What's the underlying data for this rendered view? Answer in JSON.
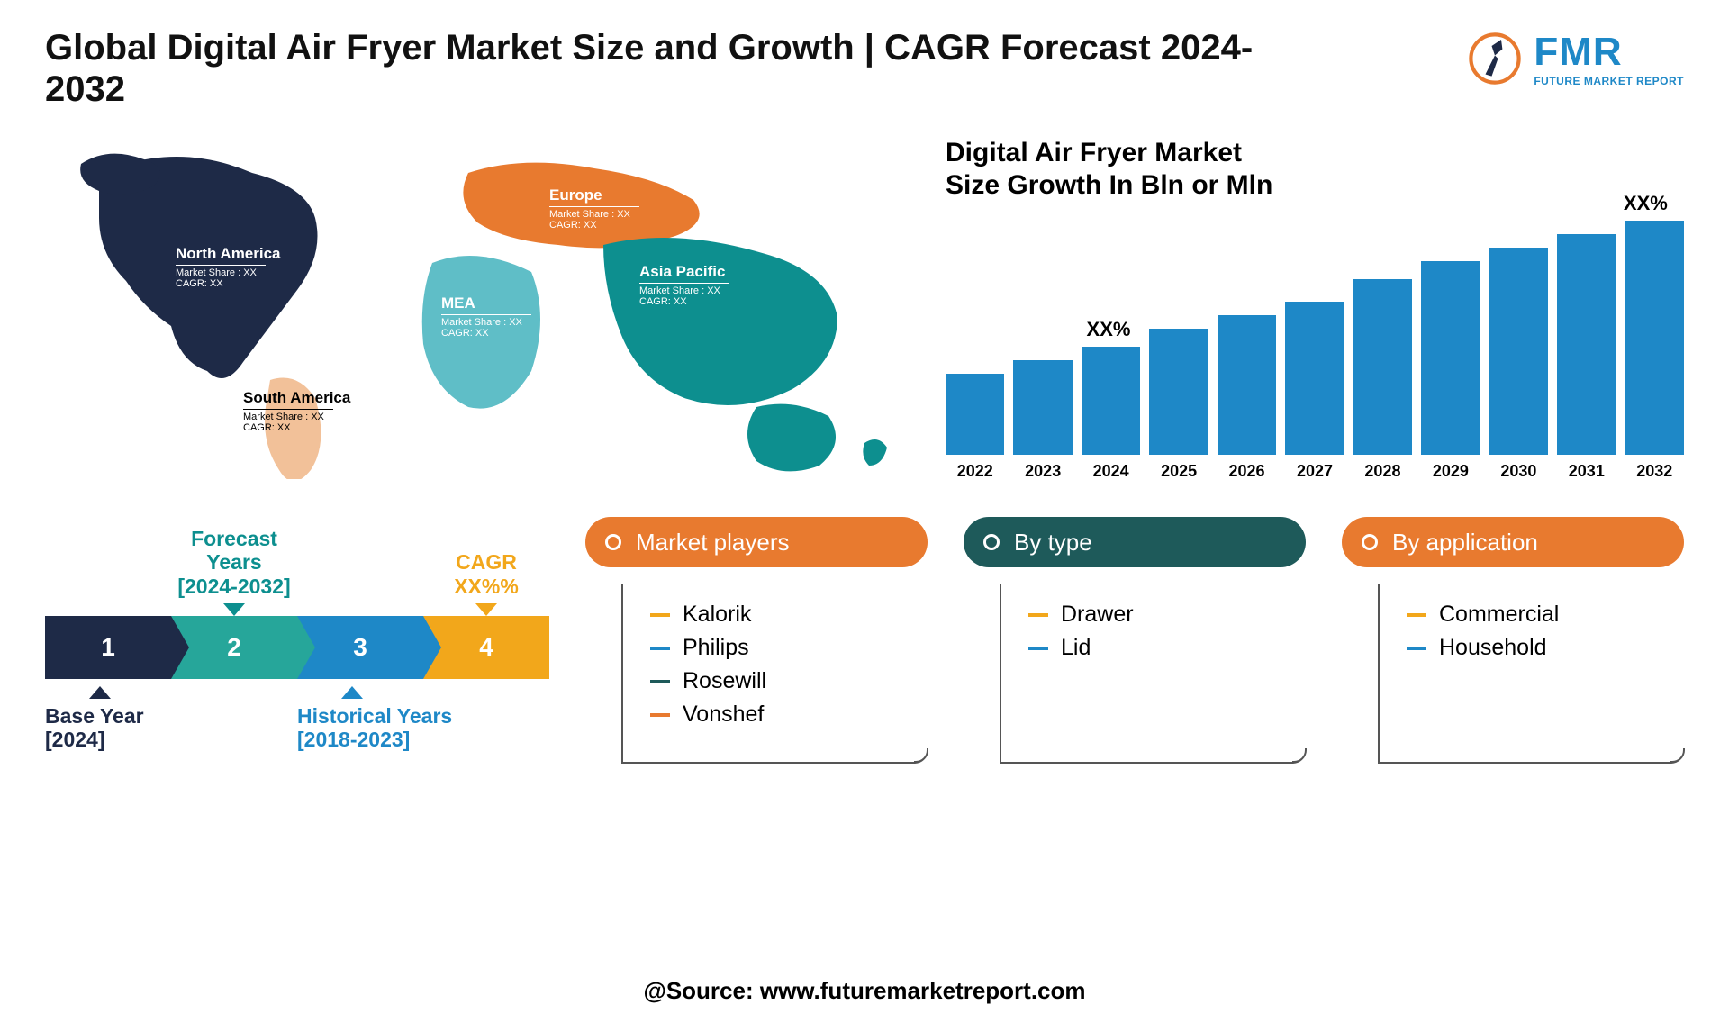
{
  "title": "Global Digital Air Fryer Market Size and Growth | CAGR Forecast 2024-2032",
  "logo": {
    "main": "FMR",
    "sub": "FUTURE MARKET REPORT"
  },
  "colors": {
    "navy": "#1e2a47",
    "teal": "#26a69a",
    "blue": "#1e88c7",
    "orange": "#e87a2f",
    "yellow": "#f2a71b",
    "teal2": "#0d8f8f",
    "darkteal": "#1e5a5a",
    "lightteal": "#5fbec7",
    "peach": "#f2c199"
  },
  "map": {
    "regions": [
      {
        "name": "North America",
        "share": "Market Share : XX",
        "cagr": "CAGR: XX",
        "color_key": "navy"
      },
      {
        "name": "Europe",
        "share": "Market Share : XX",
        "cagr": "CAGR: XX",
        "color_key": "orange"
      },
      {
        "name": "Asia Pacific",
        "share": "Market Share : XX",
        "cagr": "CAGR: XX",
        "color_key": "teal2"
      },
      {
        "name": "MEA",
        "share": "Market Share : XX",
        "cagr": "CAGR: XX",
        "color_key": "lightteal"
      },
      {
        "name": "South America",
        "share": "Market Share : XX",
        "cagr": "CAGR: XX",
        "color_key": "peach"
      }
    ]
  },
  "chart": {
    "title": "Digital Air Fryer Market Size Growth In Bln or Mln",
    "type": "bar",
    "bar_color": "#1e88c7",
    "years": [
      "2022",
      "2023",
      "2024",
      "2025",
      "2026",
      "2027",
      "2028",
      "2029",
      "2030",
      "2031",
      "2032"
    ],
    "values": [
      90,
      105,
      120,
      140,
      155,
      170,
      195,
      215,
      230,
      245,
      260
    ],
    "ymax": 280,
    "notes": [
      {
        "label": "XX%",
        "index": 2
      },
      {
        "label": "XX%",
        "index": 10
      }
    ]
  },
  "timeline": {
    "labels_top": [
      {
        "text_lines": [
          "Forecast Years",
          "[2024-2032]"
        ],
        "color_key": "teal2",
        "seg_index": 1
      },
      {
        "text_lines": [
          "CAGR",
          "XX%%"
        ],
        "color_key": "yellow",
        "seg_index": 3
      }
    ],
    "segments": [
      {
        "num": "1",
        "color_key": "navy"
      },
      {
        "num": "2",
        "color_key": "teal"
      },
      {
        "num": "3",
        "color_key": "blue"
      },
      {
        "num": "4",
        "color_key": "yellow"
      }
    ],
    "labels_bottom": [
      {
        "text_lines": [
          "Base Year",
          "[2024]"
        ],
        "color_key": "navy",
        "seg_index": 0
      },
      {
        "text_lines": [
          "Historical Years",
          "[2018-2023]"
        ],
        "color_key": "blue",
        "seg_index": 2
      }
    ]
  },
  "panels": [
    {
      "title": "Market players",
      "header_color_key": "orange",
      "items": [
        {
          "label": "Kalorik",
          "tick_color_key": "yellow"
        },
        {
          "label": "Philips",
          "tick_color_key": "blue"
        },
        {
          "label": "Rosewill",
          "tick_color_key": "darkteal"
        },
        {
          "label": "Vonshef",
          "tick_color_key": "orange"
        }
      ]
    },
    {
      "title": "By type",
      "header_color_key": "darkteal",
      "items": [
        {
          "label": "Drawer",
          "tick_color_key": "yellow"
        },
        {
          "label": "Lid",
          "tick_color_key": "blue"
        }
      ]
    },
    {
      "title": "By application",
      "header_color_key": "orange",
      "items": [
        {
          "label": "Commercial",
          "tick_color_key": "yellow"
        },
        {
          "label": "Household",
          "tick_color_key": "blue"
        }
      ]
    }
  ],
  "source": "@Source: www.futuremarketreport.com"
}
